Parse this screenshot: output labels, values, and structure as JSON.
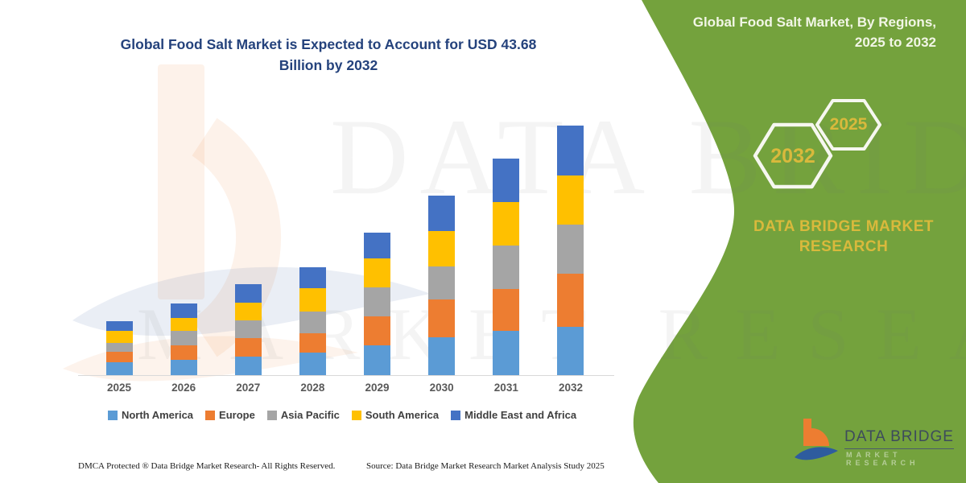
{
  "chart_title_lines": [
    "Global Food Salt Market is Expected to Account for USD 43.68",
    "Billion by 2032"
  ],
  "chart_data": {
    "type": "bar",
    "stacked": true,
    "title": "Global Food Salt Market is Expected to Account for USD 43.68 Billion by 2032",
    "unit": "USD Billion",
    "categories": [
      "2025",
      "2026",
      "2027",
      "2028",
      "2029",
      "2030",
      "2031",
      "2032"
    ],
    "series": [
      {
        "name": "North America",
        "color": "#5B9BD5",
        "values": [
          2.2,
          2.7,
          3.2,
          4.0,
          5.2,
          6.6,
          7.7,
          8.5
        ]
      },
      {
        "name": "Europe",
        "color": "#ED7D31",
        "values": [
          1.9,
          2.5,
          3.3,
          3.4,
          5.1,
          6.6,
          7.4,
          9.2
        ]
      },
      {
        "name": "Asia Pacific",
        "color": "#A5A5A5",
        "values": [
          1.6,
          2.5,
          3.1,
          3.8,
          5.0,
          5.8,
          7.6,
          8.6
        ]
      },
      {
        "name": "South America",
        "color": "#FFC000",
        "values": [
          2.1,
          2.3,
          3.1,
          4.0,
          5.2,
          6.2,
          7.6,
          8.7
        ]
      },
      {
        "name": "Middle East and Africa",
        "color": "#4472C4",
        "values": [
          1.7,
          2.6,
          3.2,
          3.7,
          4.5,
          6.3,
          7.7,
          8.7
        ]
      }
    ],
    "totals": [
      9.5,
      12.6,
      15.9,
      18.9,
      25.0,
      31.5,
      38.0,
      43.68
    ],
    "ylim": [
      0,
      45
    ],
    "y_axis_visible": false,
    "grid": false,
    "legend_position": "bottom"
  },
  "panel": {
    "header_lines": [
      "Global Food Salt Market, By Regions,",
      "2025 to 2032"
    ],
    "hex_large_label": "2032",
    "hex_small_label": "2025",
    "brand_lines": [
      "DATA BRIDGE MARKET",
      "RESEARCH"
    ]
  },
  "logo": {
    "title": "DATA BRIDGE",
    "subtitle": "MARKET RESEARCH"
  },
  "watermark": {
    "line1": "DATA BRIDGE",
    "line2": "MARKET RESEARCH"
  },
  "footer": {
    "left": "DMCA Protected ® Data Bridge Market Research-  All Rights Reserved.",
    "source": "Source: Data Bridge Market Research  Market Analysis Study 2025"
  },
  "colors": {
    "panel_green": "#74A23D",
    "accent_gold": "#D9B93C",
    "title_blue": "#24427C",
    "axis_label": "#595959",
    "legend_text": "#404040",
    "baseline": "#D9D9D9",
    "logo_orange": "#ED7D31",
    "logo_blue": "#2E5C9E"
  }
}
